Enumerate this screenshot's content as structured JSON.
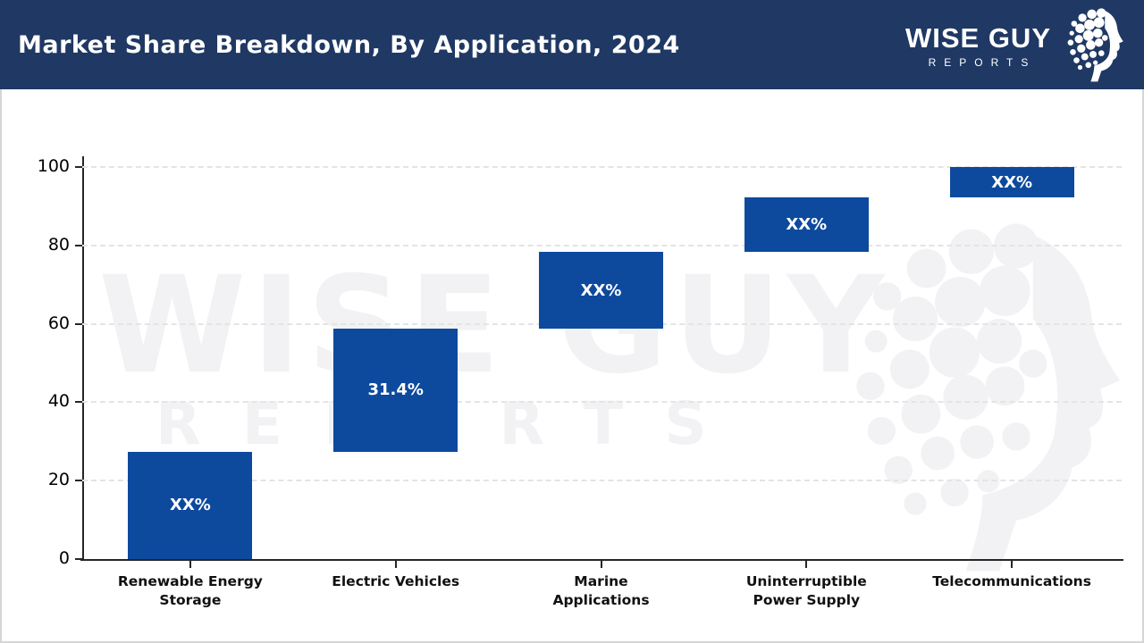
{
  "header": {
    "title": "Market Share Breakdown, By Application, 2024",
    "bg_color": "#1f3864",
    "logo_line1": "WISE GUY",
    "logo_line2": "REPORTS"
  },
  "watermark": {
    "line1": "WISE GUY",
    "line2": "REPORTS"
  },
  "chart_data": {
    "type": "bar",
    "variant": "waterfall",
    "title": "Market Share Breakdown, By Application, 2024",
    "categories": [
      "Renewable Energy\nStorage",
      "Electric Vehicles",
      "Marine\nApplications",
      "Uninterruptible\nPower Supply",
      "Telecommunications"
    ],
    "segments": [
      {
        "category": "Renewable Energy Storage",
        "start": 0,
        "end": 27.4,
        "label": "XX%"
      },
      {
        "category": "Electric Vehicles",
        "start": 27.4,
        "end": 58.8,
        "label": "31.4%"
      },
      {
        "category": "Marine Applications",
        "start": 58.8,
        "end": 78.3,
        "label": "XX%"
      },
      {
        "category": "Uninterruptible Power Supply",
        "start": 78.3,
        "end": 92.2,
        "label": "XX%"
      },
      {
        "category": "Telecommunications",
        "start": 92.2,
        "end": 100,
        "label": "XX%"
      }
    ],
    "y_ticks": [
      0,
      20,
      40,
      60,
      80,
      100
    ],
    "ylim": [
      0,
      102.7
    ],
    "grid": "horizontal-dashed",
    "legend": false,
    "bar_color": "#0d4a9e",
    "bar_label_color": "#ffffff",
    "axis_color": "#262626",
    "gridline_color": "#e4e4e4"
  }
}
